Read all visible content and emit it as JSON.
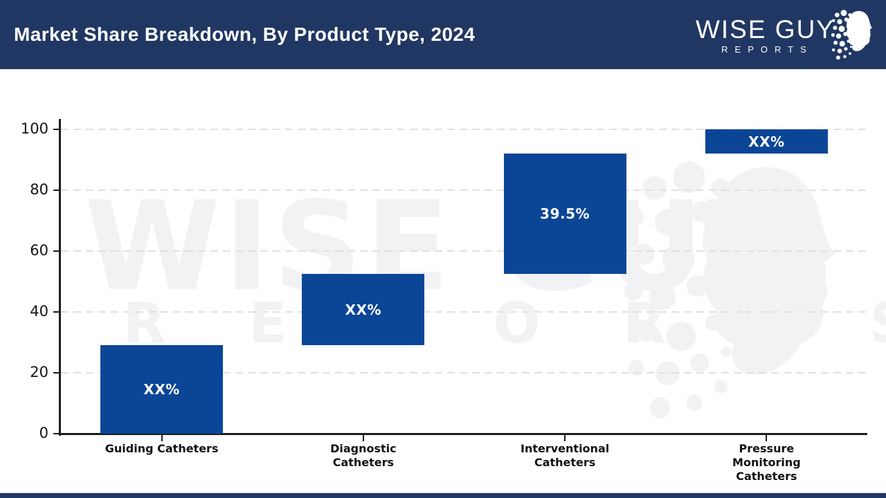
{
  "header": {
    "title": "Market Share Breakdown, By Product Type, 2024",
    "logo": {
      "brand_top": "WISE GUY",
      "brand_bottom": "REPORTS"
    }
  },
  "watermark": {
    "text_top": "WISE GUY",
    "text_bottom": "R E P O R T S"
  },
  "colors": {
    "header_bg": "#213763",
    "bar_fill": "#0b4696",
    "bar_label": "#ffffff",
    "axis": "#1c1c1c",
    "gridline": "#e0e0e0",
    "tick_label": "#141414",
    "watermark": "#f1f2f4",
    "footer_bar": "#213763",
    "footer_hairline": "#d9d9d9"
  },
  "chart_data": {
    "type": "bar",
    "subtype": "stacked-breakdown-waterfall",
    "title": "Market Share Breakdown, By Product Type, 2024",
    "unit": "percent",
    "categories": [
      "Guiding Catheters",
      "Diagnostic Catheters",
      "Interventional Catheters",
      "Pressure Monitoring Catheters"
    ],
    "category_label_lines": [
      [
        "Guiding Catheters"
      ],
      [
        "Diagnostic",
        "Catheters"
      ],
      [
        "Interventional",
        "Catheters"
      ],
      [
        "Pressure",
        "Monitoring",
        "Catheters"
      ]
    ],
    "values": [
      29,
      23.5,
      39.5,
      8
    ],
    "segment_ranges": [
      [
        0,
        29
      ],
      [
        29,
        52.5
      ],
      [
        52.5,
        92
      ],
      [
        92,
        100
      ]
    ],
    "bar_labels": [
      "XX%",
      "XX%",
      "39.5%",
      "XX%"
    ],
    "xlabel": "",
    "ylabel": "",
    "ylim": [
      0,
      100
    ],
    "yticks": [
      0,
      20,
      40,
      60,
      80,
      100
    ],
    "grid": "horizontal dashed",
    "legend": "none"
  }
}
